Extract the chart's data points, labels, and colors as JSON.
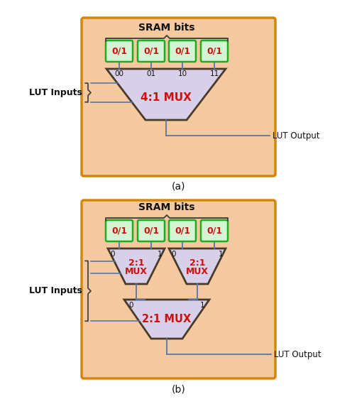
{
  "bg_color": "#ffffff",
  "orange_box_color": "#f5c9a0",
  "orange_box_edge": "#d4860a",
  "green_box_color": "#d4f5d4",
  "green_box_edge": "#22aa22",
  "mux_fill": "#d8d0e8",
  "mux_edge": "#4a3a2a",
  "red_text": "#cc1111",
  "dark_text": "#111111",
  "blue_line": "#5577aa",
  "brace_color": "#444444",
  "sram_label": "SRAM bits",
  "lut_inputs_label": "LUT Inputs",
  "lut_output_label": "LUT Output",
  "a_label": "(a)",
  "b_label": "(b)",
  "mux_41_label": "4:1 MUX",
  "mux_21_label": "2:1",
  "bit_label": "0/1"
}
